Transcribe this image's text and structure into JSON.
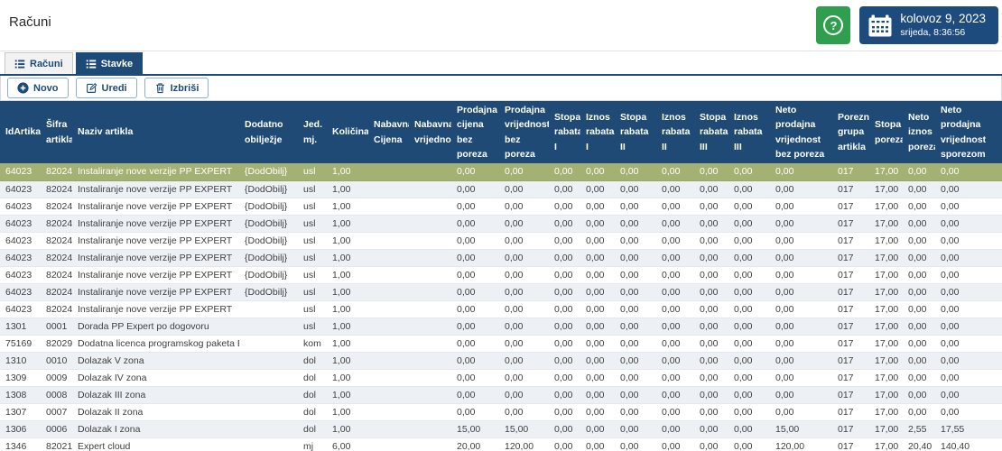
{
  "page": {
    "title": "Računi"
  },
  "topbar": {
    "help_label": "?",
    "date": "kolovoz 9, 2023",
    "time": "srijeda, 8:36:56"
  },
  "tabs": [
    {
      "label": "Računi",
      "active": false
    },
    {
      "label": "Stavke",
      "active": true
    }
  ],
  "toolbar": {
    "new_label": "Novo",
    "edit_label": "Uredi",
    "delete_label": "Izbriši"
  },
  "icons": {
    "help": "question-icon",
    "calendar": "calendar-icon",
    "tab": "list-icon",
    "new": "plus-circle-icon",
    "edit": "pencil-icon",
    "delete": "trash-icon"
  },
  "colors": {
    "navy": "#1e4a75",
    "green_button": "#2f9e4f",
    "selected_row": "#a3b272",
    "alt_row": "#edf1f6",
    "scrollbar": "#7ea7cd"
  },
  "table": {
    "selected_row_index": 0,
    "columns": [
      "IdArtikal",
      "Šifra artikla",
      "Naziv artikla",
      "Dodatno obilježje",
      "Jed. mj.",
      "Količina",
      "Nabavna Cijena",
      "Nabavna vrijednost",
      "Prodajna cijena bez poreza",
      "Prodajna vrijednost bez poreza",
      "Stopa rabata I",
      "Iznos rabata I",
      "Stopa rabata II",
      "Iznos rabata II",
      "Stopa rabata III",
      "Iznos rabata III",
      "Neto prodajna vrijednost bez poreza",
      "Porezna grupa artikla",
      "Stopa poreza",
      "Neto iznos poreza",
      "Neto prodajna vrijednost sporezom"
    ],
    "rows": [
      [
        "64023",
        "82024",
        "Instaliranje nove verzije PP EXPERT",
        "{DodObilj}",
        "usl",
        "1,00",
        "",
        "",
        "0,00",
        "0,00",
        "0,00",
        "0,00",
        "0,00",
        "0,00",
        "0,00",
        "0,00",
        "0,00",
        "017",
        "17,00",
        "0,00",
        "0,00"
      ],
      [
        "64023",
        "82024",
        "Instaliranje nove verzije PP EXPERT",
        "{DodObilj}",
        "usl",
        "1,00",
        "",
        "",
        "0,00",
        "0,00",
        "0,00",
        "0,00",
        "0,00",
        "0,00",
        "0,00",
        "0,00",
        "0,00",
        "017",
        "17,00",
        "0,00",
        "0,00"
      ],
      [
        "64023",
        "82024",
        "Instaliranje nove verzije PP EXPERT",
        "{DodObilj}",
        "usl",
        "1,00",
        "",
        "",
        "0,00",
        "0,00",
        "0,00",
        "0,00",
        "0,00",
        "0,00",
        "0,00",
        "0,00",
        "0,00",
        "017",
        "17,00",
        "0,00",
        "0,00"
      ],
      [
        "64023",
        "82024",
        "Instaliranje nove verzije PP EXPERT",
        "{DodObilj}",
        "usl",
        "1,00",
        "",
        "",
        "0,00",
        "0,00",
        "0,00",
        "0,00",
        "0,00",
        "0,00",
        "0,00",
        "0,00",
        "0,00",
        "017",
        "17,00",
        "0,00",
        "0,00"
      ],
      [
        "64023",
        "82024",
        "Instaliranje nove verzije PP EXPERT",
        "{DodObilj}",
        "usl",
        "1,00",
        "",
        "",
        "0,00",
        "0,00",
        "0,00",
        "0,00",
        "0,00",
        "0,00",
        "0,00",
        "0,00",
        "0,00",
        "017",
        "17,00",
        "0,00",
        "0,00"
      ],
      [
        "64023",
        "82024",
        "Instaliranje nove verzije PP EXPERT",
        "{DodObilj}",
        "usl",
        "1,00",
        "",
        "",
        "0,00",
        "0,00",
        "0,00",
        "0,00",
        "0,00",
        "0,00",
        "0,00",
        "0,00",
        "0,00",
        "017",
        "17,00",
        "0,00",
        "0,00"
      ],
      [
        "64023",
        "82024",
        "Instaliranje nove verzije PP EXPERT",
        "{DodObilj}",
        "usl",
        "1,00",
        "",
        "",
        "0,00",
        "0,00",
        "0,00",
        "0,00",
        "0,00",
        "0,00",
        "0,00",
        "0,00",
        "0,00",
        "017",
        "17,00",
        "0,00",
        "0,00"
      ],
      [
        "64023",
        "82024",
        "Instaliranje nove verzije PP EXPERT",
        "{DodObilj}",
        "usl",
        "1,00",
        "",
        "",
        "0,00",
        "0,00",
        "0,00",
        "0,00",
        "0,00",
        "0,00",
        "0,00",
        "0,00",
        "0,00",
        "017",
        "17,00",
        "0,00",
        "0,00"
      ],
      [
        "64023",
        "82024",
        "Instaliranje nove verzije PP EXPERT",
        "",
        "usl",
        "1,00",
        "",
        "",
        "0,00",
        "0,00",
        "0,00",
        "0,00",
        "0,00",
        "0,00",
        "0,00",
        "0,00",
        "0,00",
        "017",
        "17,00",
        "0,00",
        "0,00"
      ],
      [
        "1301",
        "0001",
        "Dorada PP Expert po dogovoru",
        "",
        "usl",
        "1,00",
        "",
        "",
        "0,00",
        "0,00",
        "0,00",
        "0,00",
        "0,00",
        "0,00",
        "0,00",
        "0,00",
        "0,00",
        "017",
        "17,00",
        "0,00",
        "0,00"
      ],
      [
        "75169",
        "82029",
        "Dodatna licenca programskog paketa Exper",
        "",
        "kom",
        "1,00",
        "",
        "",
        "0,00",
        "0,00",
        "0,00",
        "0,00",
        "0,00",
        "0,00",
        "0,00",
        "0,00",
        "0,00",
        "017",
        "17,00",
        "0,00",
        "0,00"
      ],
      [
        "1310",
        "0010",
        "Dolazak V zona",
        "",
        "dol",
        "1,00",
        "",
        "",
        "0,00",
        "0,00",
        "0,00",
        "0,00",
        "0,00",
        "0,00",
        "0,00",
        "0,00",
        "0,00",
        "017",
        "17,00",
        "0,00",
        "0,00"
      ],
      [
        "1309",
        "0009",
        "Dolazak IV zona",
        "",
        "dol",
        "1,00",
        "",
        "",
        "0,00",
        "0,00",
        "0,00",
        "0,00",
        "0,00",
        "0,00",
        "0,00",
        "0,00",
        "0,00",
        "017",
        "17,00",
        "0,00",
        "0,00"
      ],
      [
        "1308",
        "0008",
        "Dolazak III zona",
        "",
        "dol",
        "1,00",
        "",
        "",
        "0,00",
        "0,00",
        "0,00",
        "0,00",
        "0,00",
        "0,00",
        "0,00",
        "0,00",
        "0,00",
        "017",
        "17,00",
        "0,00",
        "0,00"
      ],
      [
        "1307",
        "0007",
        "Dolazak II zona",
        "",
        "dol",
        "1,00",
        "",
        "",
        "0,00",
        "0,00",
        "0,00",
        "0,00",
        "0,00",
        "0,00",
        "0,00",
        "0,00",
        "0,00",
        "017",
        "17,00",
        "0,00",
        "0,00"
      ],
      [
        "1306",
        "0006",
        "Dolazak I zona",
        "",
        "dol",
        "1,00",
        "",
        "",
        "15,00",
        "15,00",
        "0,00",
        "0,00",
        "0,00",
        "0,00",
        "0,00",
        "0,00",
        "15,00",
        "017",
        "17,00",
        "2,55",
        "17,55"
      ],
      [
        "1346",
        "82021",
        "Expert cloud",
        "",
        "mj",
        "6,00",
        "",
        "",
        "20,00",
        "120,00",
        "0,00",
        "0,00",
        "0,00",
        "0,00",
        "0,00",
        "0,00",
        "120,00",
        "017",
        "17,00",
        "20,40",
        "140,40"
      ]
    ]
  }
}
